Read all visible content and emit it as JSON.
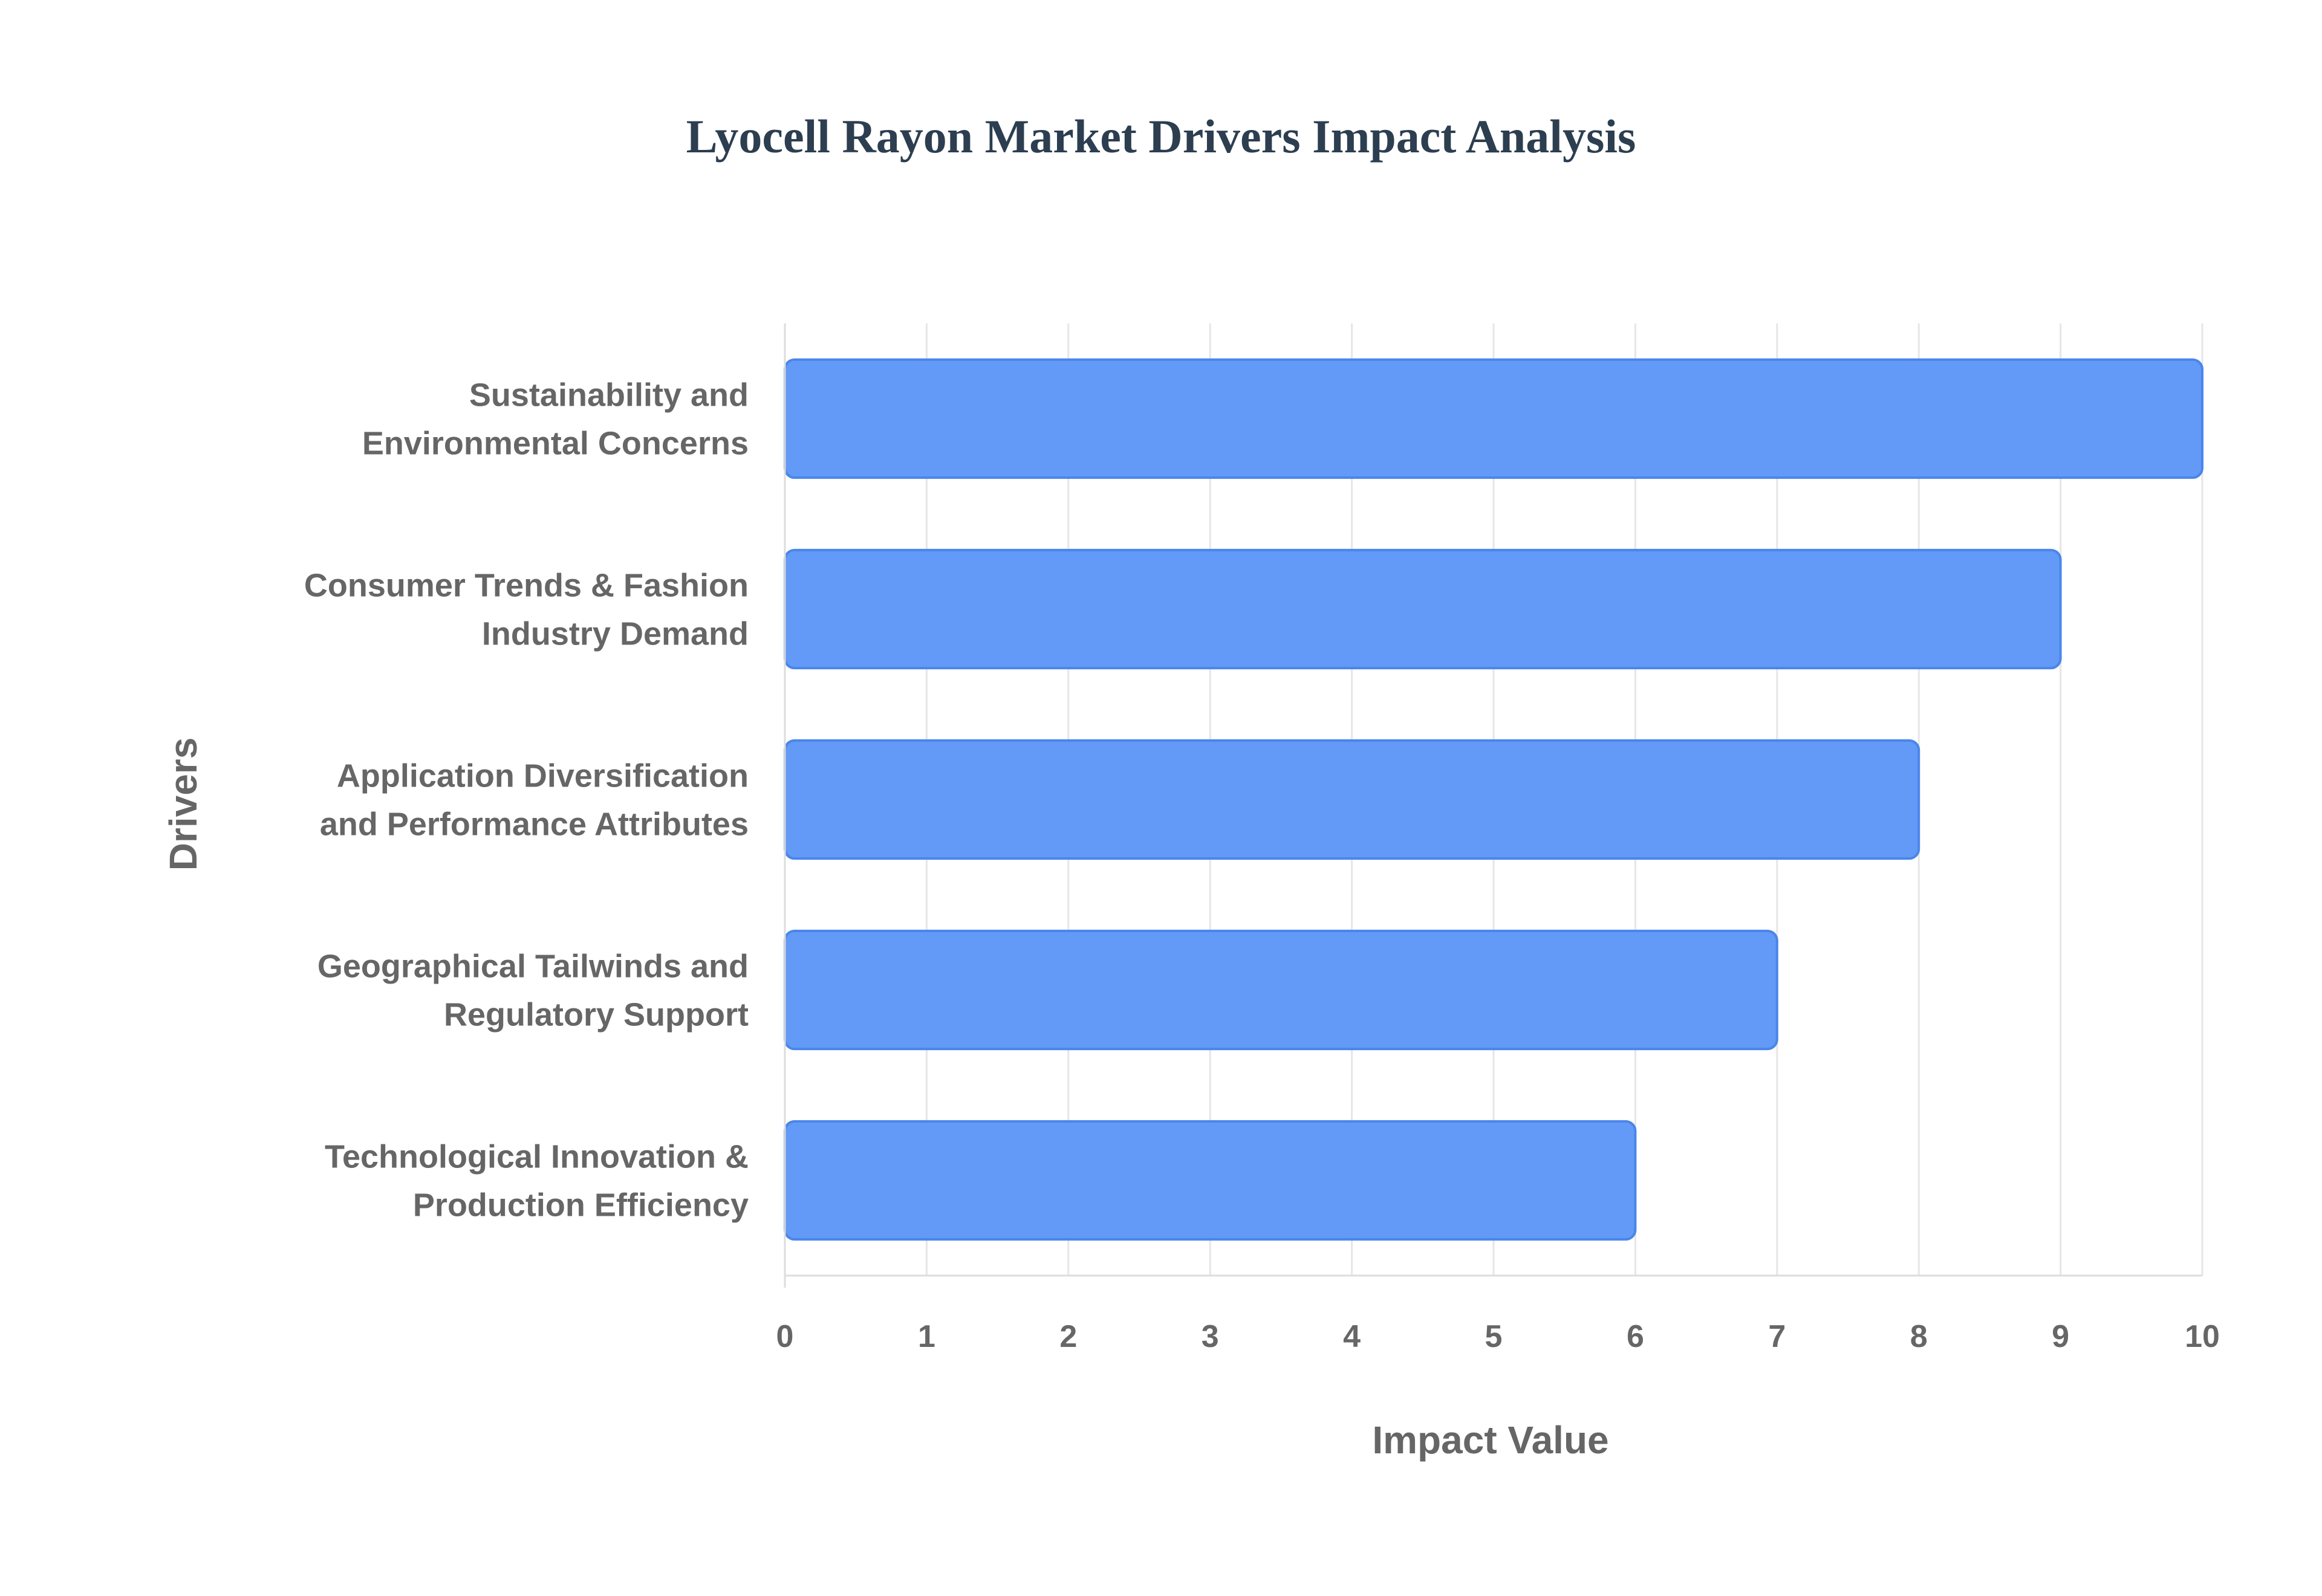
{
  "chart_data": {
    "type": "bar",
    "orientation": "horizontal",
    "title": "Lyocell Rayon Market Drivers Impact Analysis",
    "xlabel": "Impact Value",
    "ylabel": "Drivers",
    "xlim": [
      0,
      10
    ],
    "xticks": [
      0,
      1,
      2,
      3,
      4,
      5,
      6,
      7,
      8,
      9,
      10
    ],
    "categories": [
      "Sustainability and Environmental Concerns",
      "Consumer Trends & Fashion Industry Demand",
      "Application Diversification and Performance Attributes",
      "Geographical Tailwinds and Regulatory Support",
      "Technological Innovation & Production Efficiency"
    ],
    "category_lines": [
      [
        "Sustainability and",
        "Environmental Concerns"
      ],
      [
        "Consumer Trends & Fashion",
        "Industry Demand"
      ],
      [
        "Application Diversification",
        "and Performance Attributes"
      ],
      [
        "Geographical Tailwinds and",
        "Regulatory Support"
      ],
      [
        "Technological Innovation &",
        "Production Efficiency"
      ]
    ],
    "values": [
      10,
      9,
      8,
      7,
      6
    ],
    "grid": true,
    "legend": "none",
    "colors": {
      "bar_fill": "#6399f7",
      "bar_stroke": "#4a86ea",
      "title": "#2c3e50",
      "text": "#666666",
      "grid": "#e6e6e6"
    }
  }
}
